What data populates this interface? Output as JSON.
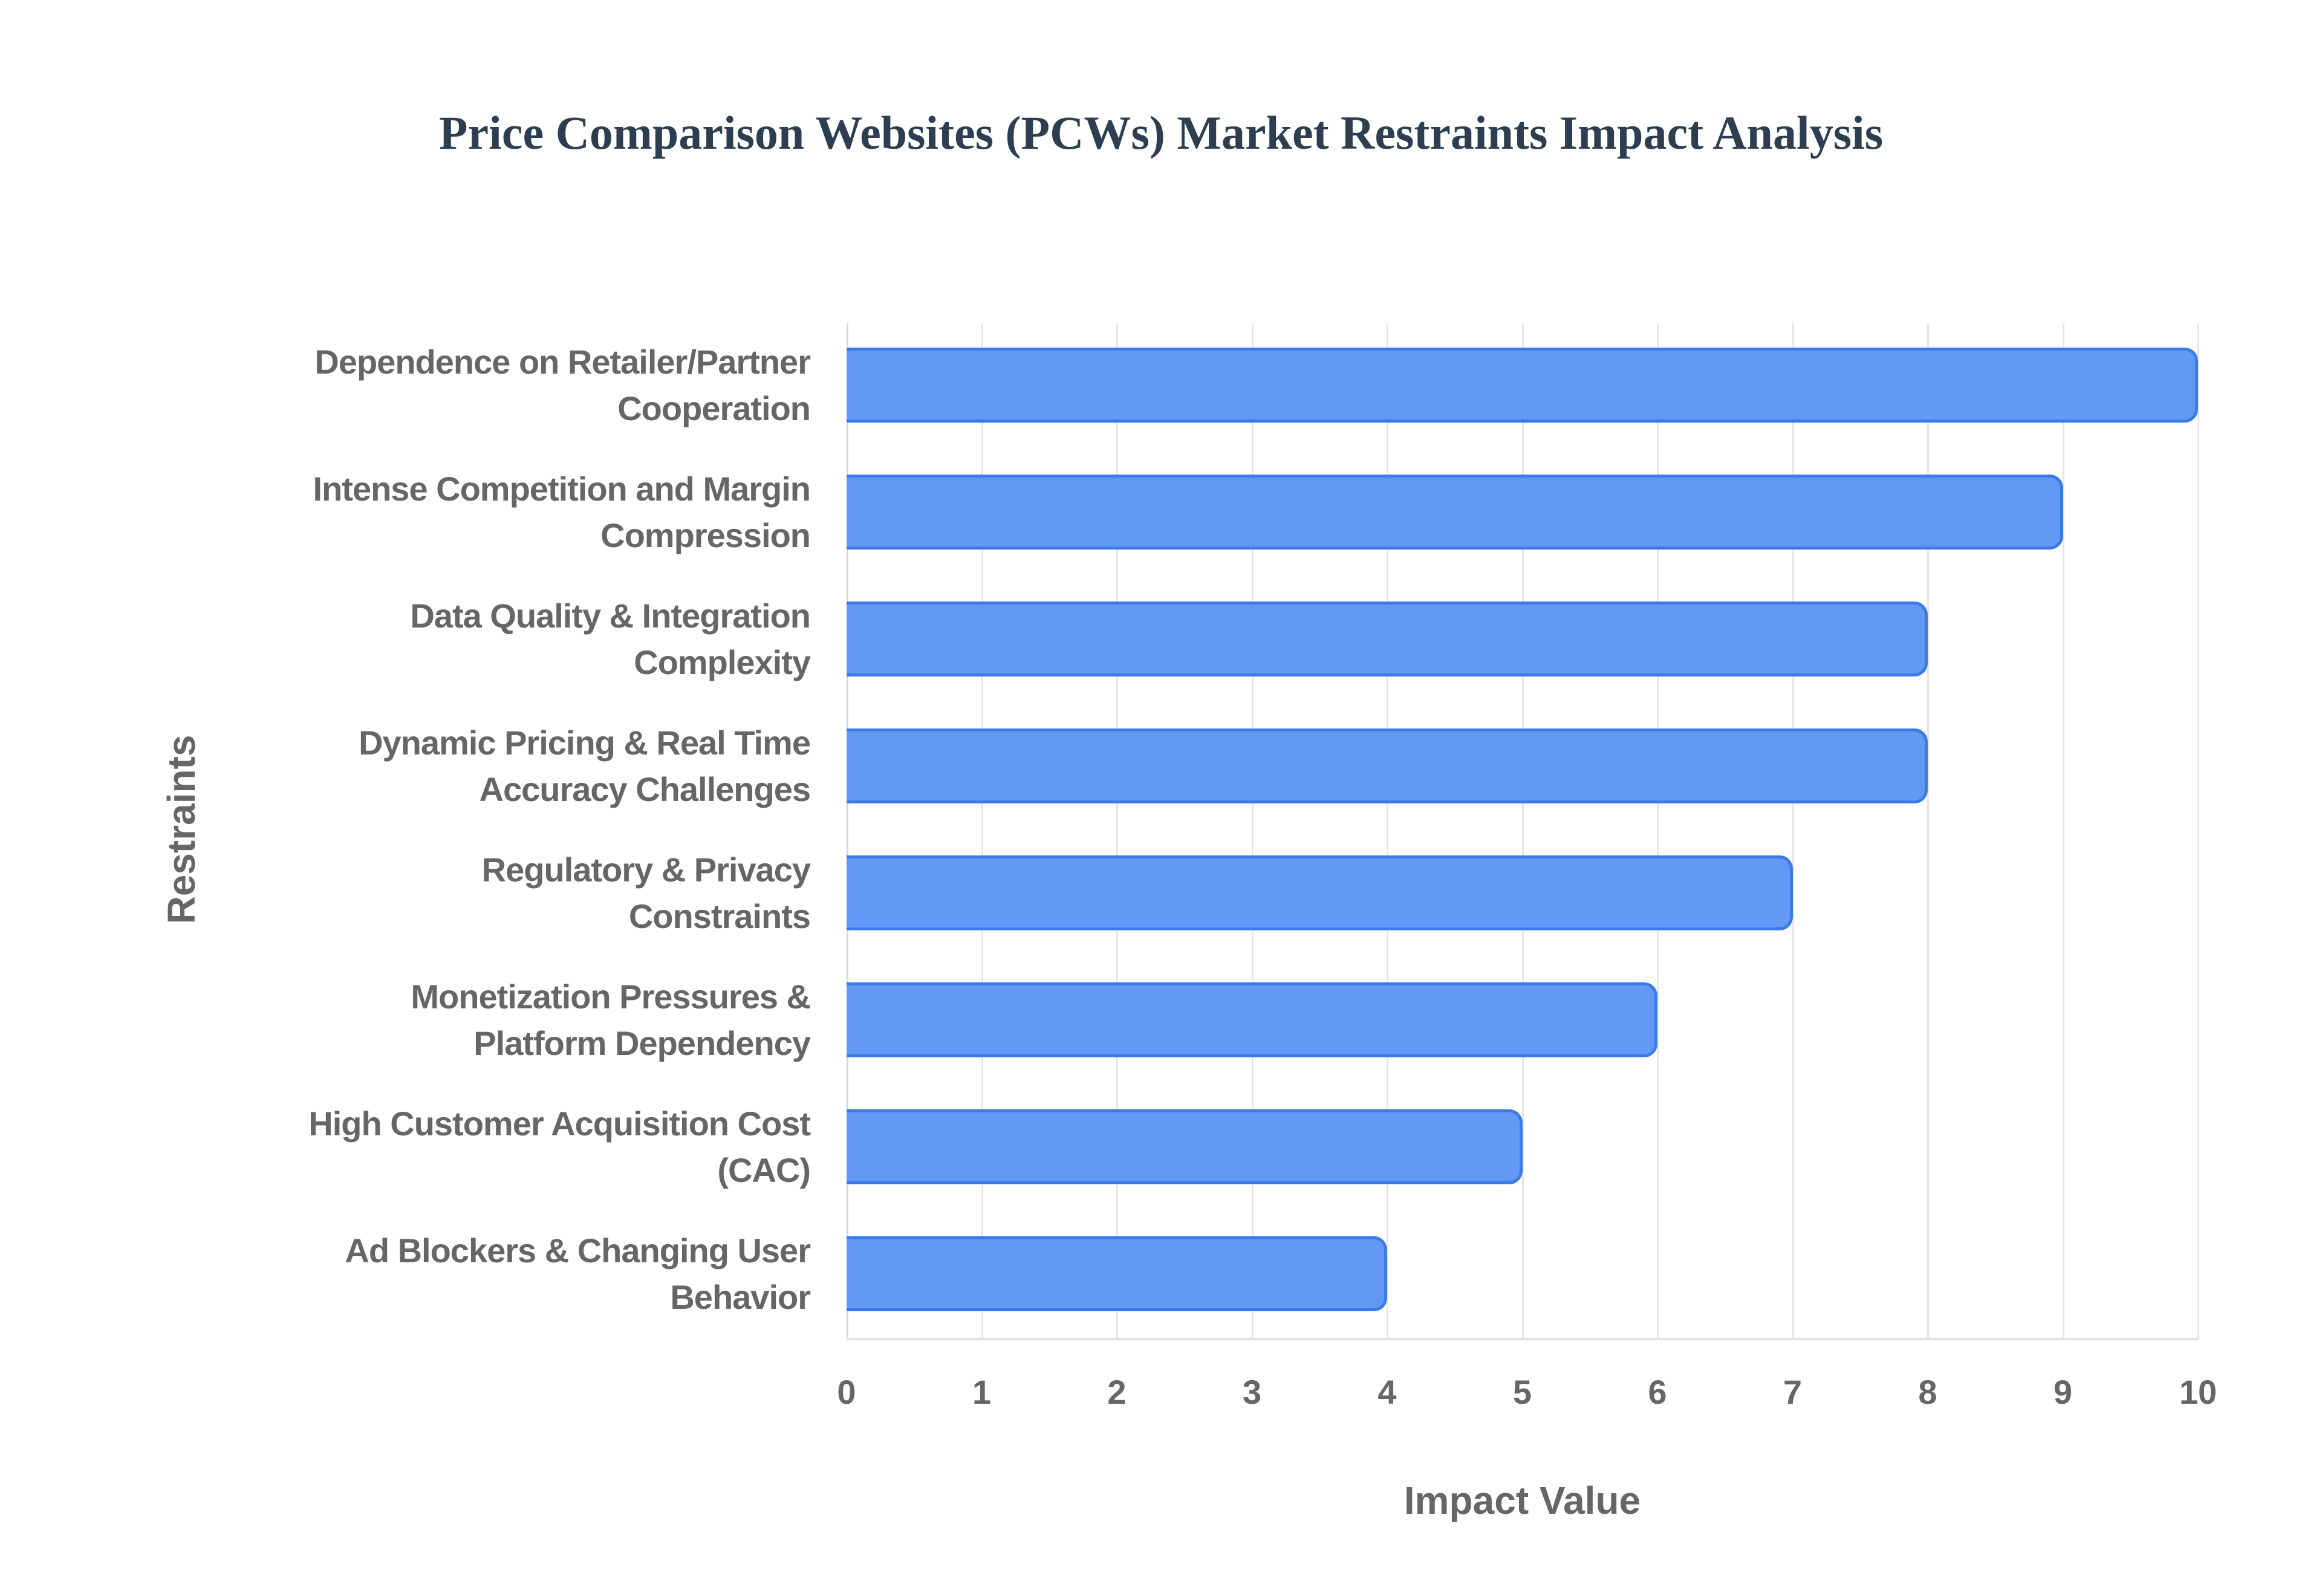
{
  "title": "Price Comparison Websites (PCWs) Market Restraints Impact Analysis",
  "colors": {
    "bar_fill": "#6399f4",
    "bar_border": "#3b7be8",
    "text": "#666666",
    "title": "#2c3e50"
  },
  "axes": {
    "x_title": "Impact Value",
    "y_title": "Restraints",
    "x_ticks": [
      "0",
      "1",
      "2",
      "3",
      "4",
      "5",
      "6",
      "7",
      "8",
      "9",
      "10"
    ]
  },
  "labels": [
    [
      "Dependence on Retailer/Partner",
      "Cooperation"
    ],
    [
      "Intense Competition and Margin",
      "Compression"
    ],
    [
      "Data Quality & Integration",
      "Complexity"
    ],
    [
      "Dynamic Pricing & Real Time",
      "Accuracy Challenges"
    ],
    [
      "Regulatory & Privacy",
      "Constraints"
    ],
    [
      "Monetization Pressures &",
      "Platform Dependency"
    ],
    [
      "High Customer Acquisition Cost",
      "(CAC)"
    ],
    [
      "Ad Blockers & Changing User",
      "Behavior"
    ]
  ],
  "chart_data": {
    "type": "bar",
    "orientation": "horizontal",
    "title": "Price Comparison Websites (PCWs) Market Restraints Impact Analysis",
    "xlabel": "Impact Value",
    "ylabel": "Restraints",
    "categories": [
      "Dependence on Retailer/Partner Cooperation",
      "Intense Competition and Margin Compression",
      "Data Quality & Integration Complexity",
      "Dynamic Pricing & Real Time Accuracy Challenges",
      "Regulatory & Privacy Constraints",
      "Monetization Pressures & Platform Dependency",
      "High Customer Acquisition Cost (CAC)",
      "Ad Blockers & Changing User Behavior"
    ],
    "values": [
      10,
      9,
      8,
      8,
      7,
      6,
      5,
      4
    ],
    "xlim": [
      0,
      10
    ],
    "x_ticks": [
      0,
      1,
      2,
      3,
      4,
      5,
      6,
      7,
      8,
      9,
      10
    ],
    "grid": true,
    "legend": "none"
  }
}
